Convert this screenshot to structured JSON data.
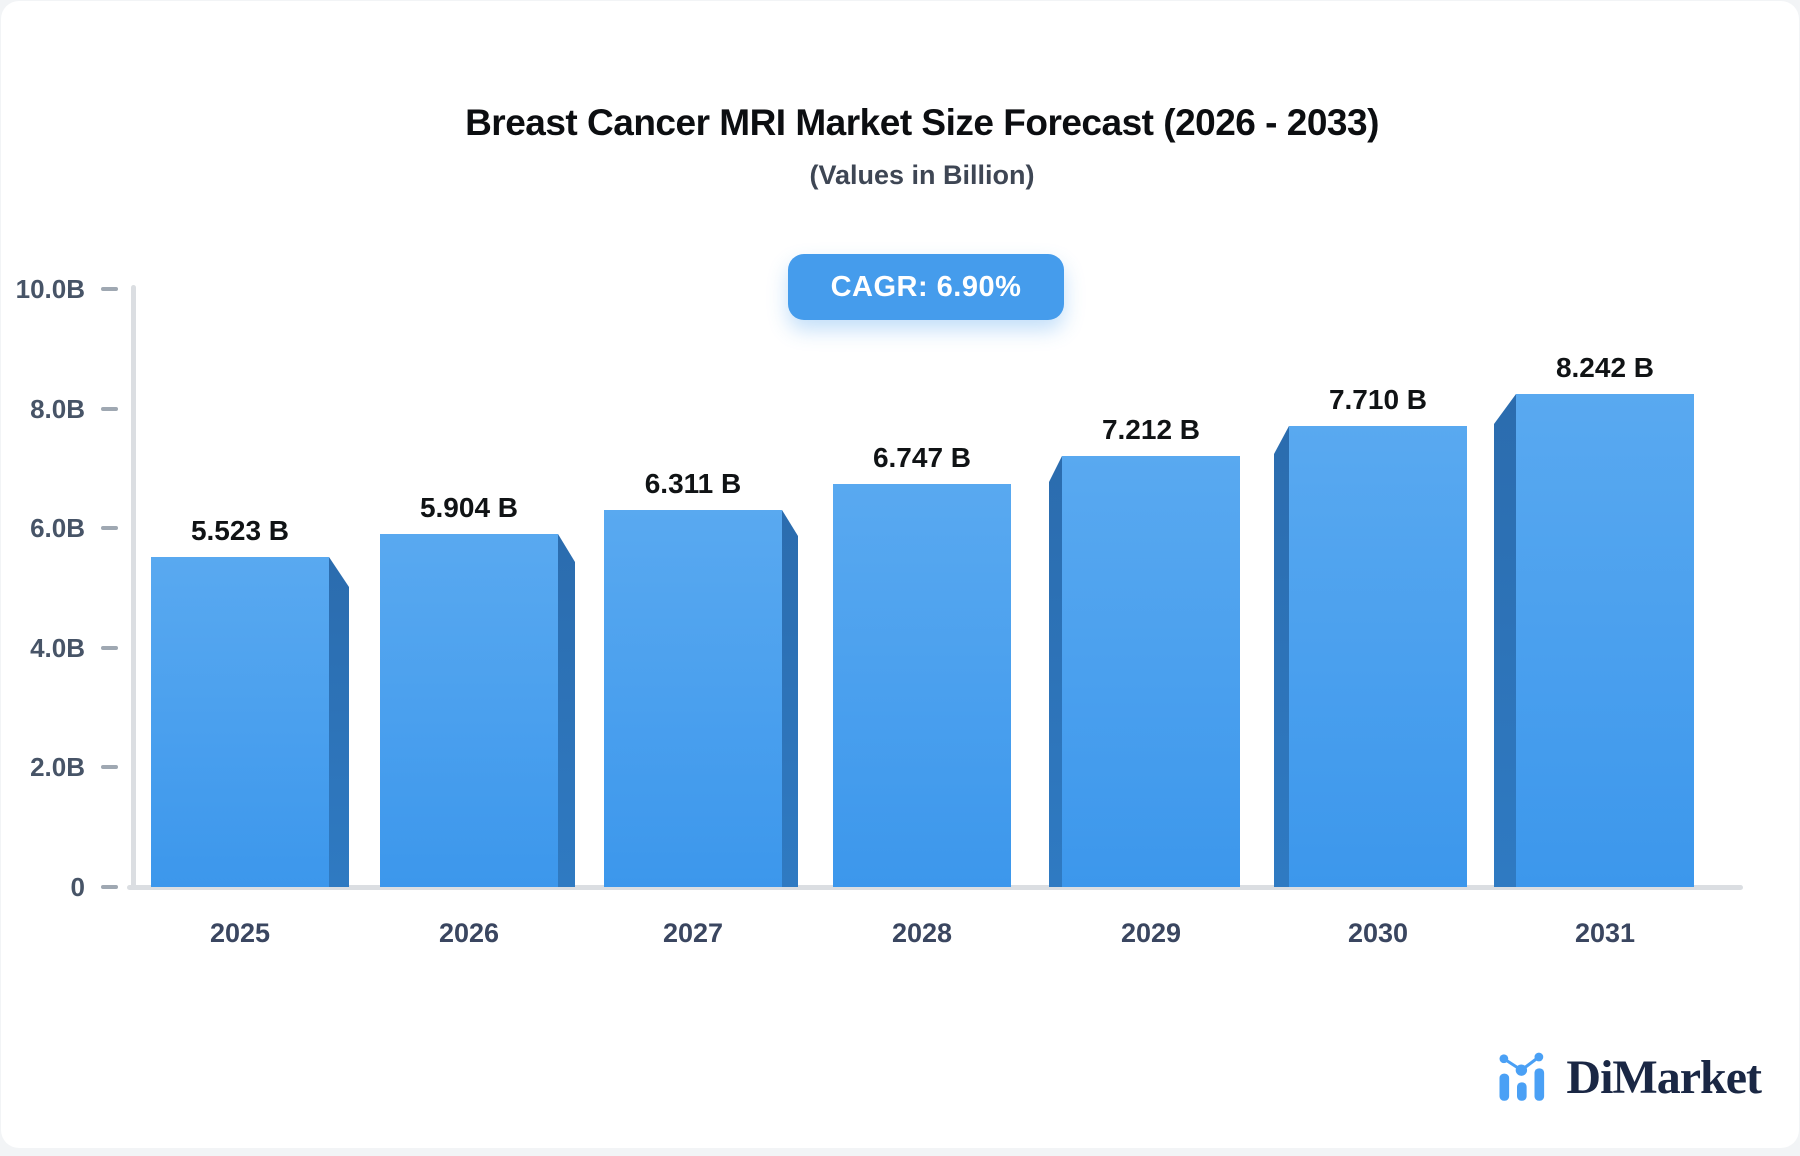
{
  "chart_data": {
    "type": "bar",
    "title": "Breast Cancer MRI Market Size Forecast (2026 - 2033)",
    "subtitle": "(Values in Billion)",
    "cagr_label": "CAGR: 6.90%",
    "categories": [
      "2025",
      "2026",
      "2027",
      "2028",
      "2029",
      "2030",
      "2031"
    ],
    "values": [
      5.523,
      5.904,
      6.311,
      6.747,
      7.212,
      7.71,
      8.242
    ],
    "value_labels": [
      "5.523 B",
      "5.904 B",
      "6.311 B",
      "6.747 B",
      "7.212 B",
      "7.710 B",
      "8.242 B"
    ],
    "ylabel": "",
    "xlabel": "",
    "ylim": [
      0,
      10
    ],
    "ytick_labels": [
      "10.0B",
      "8.0B",
      "6.0B",
      "4.0B",
      "2.0B",
      "0"
    ],
    "grid": false,
    "legend": false,
    "bar_style": "3d-extruded"
  },
  "colors": {
    "bar_face_top": "#59a9f0",
    "bar_face_bottom": "#3c97ec",
    "bar_side_top": "#2b6cae",
    "bar_side_bottom": "#2f7ac2",
    "badge_bg": "#459cec",
    "axis_line": "#dbdee2",
    "tick": "#9fa8b2",
    "title_text": "#0c0e11",
    "logo_blue": "#4aa0f5",
    "logo_text_color": "#1a2744"
  },
  "branding": {
    "logo_text": "DiMarket",
    "logo_icon": "bar-line-chart-icon"
  }
}
